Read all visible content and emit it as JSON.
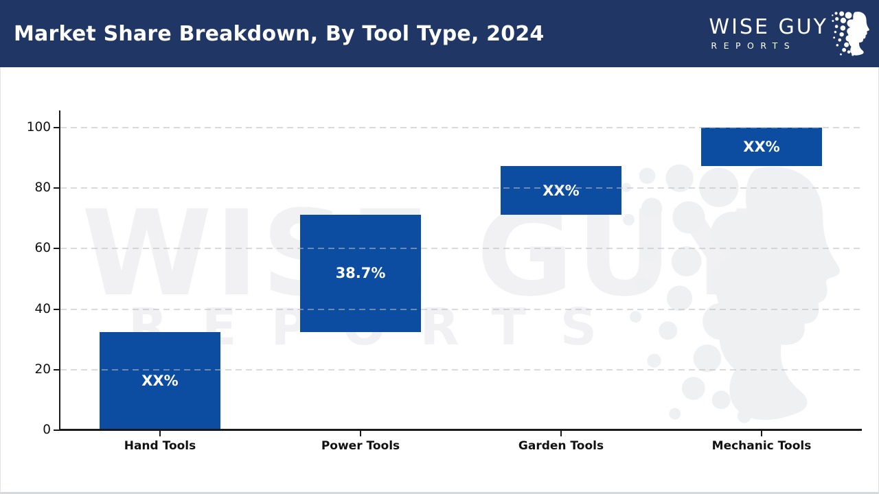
{
  "header": {
    "title": "Market Share Breakdown, By Tool Type, 2024",
    "logo": {
      "line1": "WISE GUY",
      "line2": "REPORTS"
    }
  },
  "watermark": {
    "line1": "WISE GUY",
    "line2": "REPORTS"
  },
  "chart_data": {
    "type": "bar",
    "subtype": "waterfall",
    "title": "Market Share Breakdown, By Tool Type, 2024",
    "categories": [
      "Hand Tools",
      "Power Tools",
      "Garden Tools",
      "Mechanic Tools"
    ],
    "segments": [
      {
        "category": "Hand Tools",
        "start": 0,
        "end": 32.5,
        "label": "XX%"
      },
      {
        "category": "Power Tools",
        "start": 32.5,
        "end": 71.2,
        "label": "38.7%",
        "value": 38.7
      },
      {
        "category": "Garden Tools",
        "start": 71.2,
        "end": 87.2,
        "label": "XX%"
      },
      {
        "category": "Mechanic Tools",
        "start": 87.2,
        "end": 100,
        "label": "XX%"
      }
    ],
    "y_ticks": [
      0,
      20,
      40,
      60,
      80,
      100
    ],
    "ylim": [
      0,
      106
    ],
    "xlabel": "",
    "ylabel": "",
    "grid": "horizontal-dashed-over-bars",
    "legend": false,
    "bar_color": "#0d4da1",
    "bar_label_color": "#ffffff",
    "axis_color": "#1a1a1a",
    "tick_label_color": "#111111"
  },
  "colors": {
    "header_bg": "#203765",
    "page_bg": "#ffffff",
    "watermark": "#f1f1f3",
    "bottom_hairline": "#d7d8da"
  }
}
